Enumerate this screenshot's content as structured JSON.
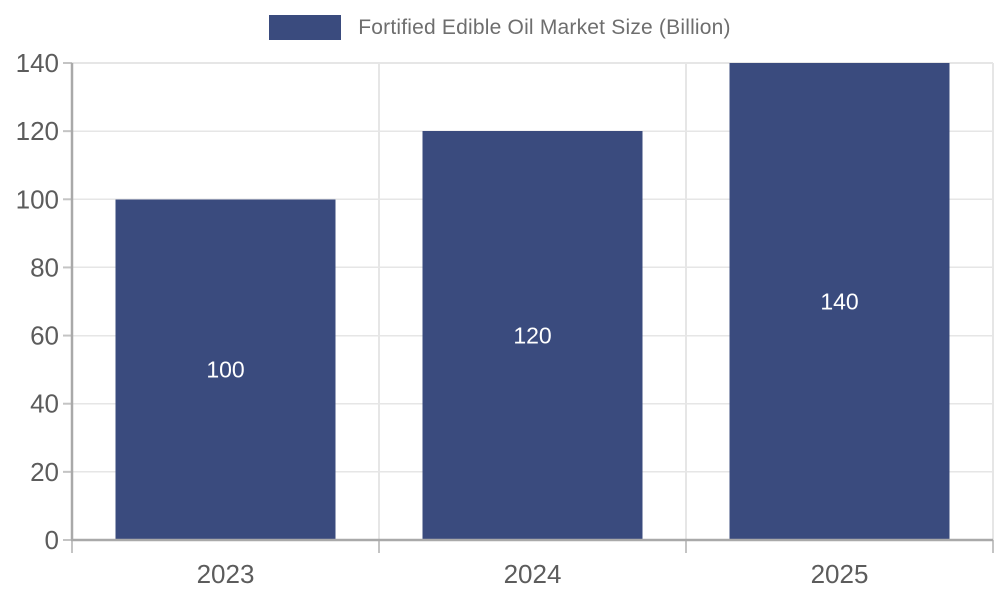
{
  "chart_data": {
    "type": "bar",
    "title": "Fortified Edible Oil Market Size (Billion)",
    "categories": [
      "2023",
      "2024",
      "2025"
    ],
    "values": [
      100,
      120,
      140
    ],
    "series": [
      {
        "name": "Fortified Edible Oil Market Size (Billion)",
        "values": [
          100,
          120,
          140
        ]
      }
    ],
    "value_labels": [
      "100",
      "120",
      "140"
    ],
    "ytick_labels": [
      "0",
      "20",
      "40",
      "60",
      "80",
      "100",
      "120",
      "140"
    ],
    "ylim": [
      0,
      140
    ],
    "ytick_step": 20,
    "xlabel": "",
    "ylabel": "",
    "grid": true,
    "legend_position": "top",
    "colors": {
      "bar_fill": "#3A4B7E",
      "value_label": "#ffffff",
      "grid_line": "#e6e6e6",
      "axis_line": "#a9a9a9",
      "tick_mark": "#c4c4c4",
      "tick_label": "#5c5c5c",
      "legend_text": "#6e6e6e",
      "background": "#ffffff"
    }
  }
}
